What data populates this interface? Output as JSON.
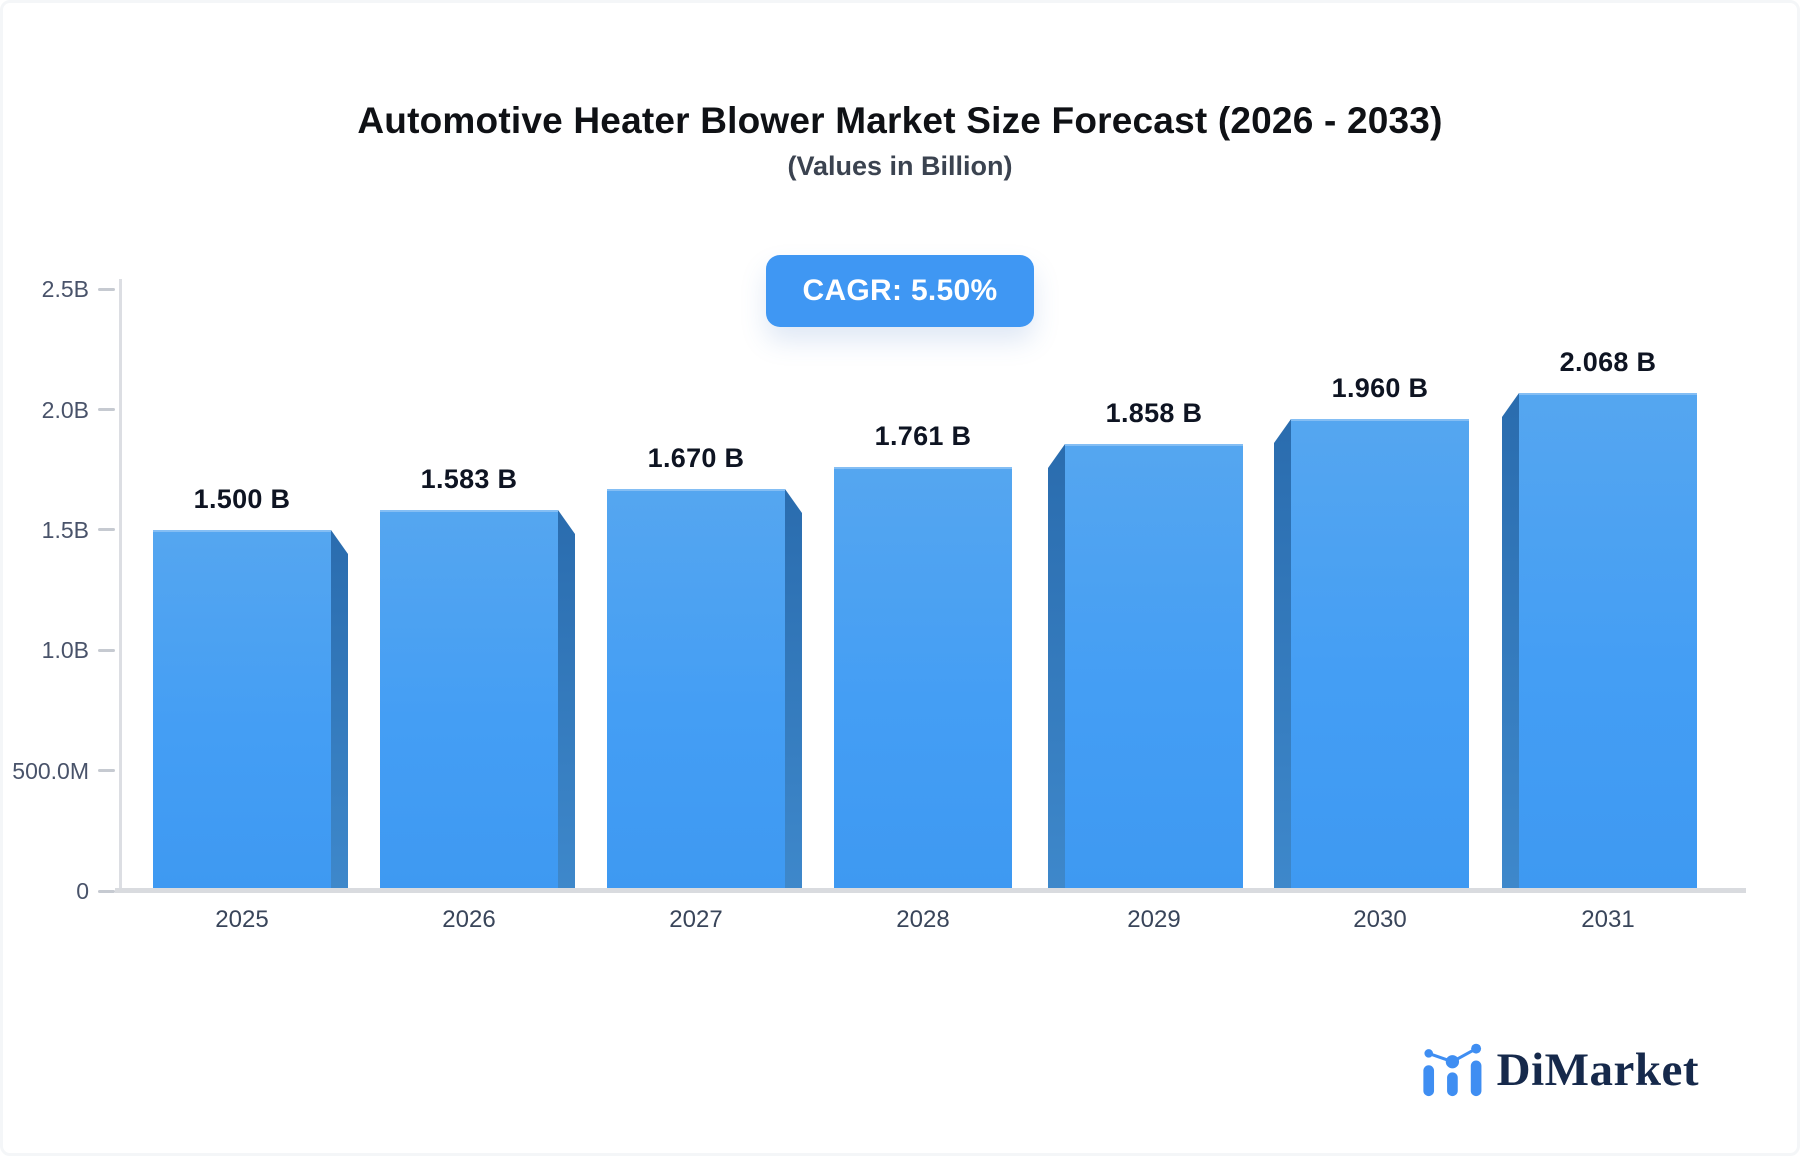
{
  "chart_data": {
    "type": "bar",
    "title": "Automotive Heater Blower Market Size Forecast (2026 - 2033)",
    "subtitle": "(Values in Billion)",
    "cagr_label": "CAGR: 5.50%",
    "categories": [
      "2025",
      "2026",
      "2027",
      "2028",
      "2029",
      "2030",
      "2031"
    ],
    "values": [
      1.5,
      1.583,
      1.67,
      1.761,
      1.858,
      1.96,
      2.068
    ],
    "value_labels": [
      "1.500 B",
      "1.583 B",
      "1.670 B",
      "1.761 B",
      "1.858 B",
      "1.960 B",
      "2.068 B"
    ],
    "unit": "Billion",
    "xlabel": "",
    "ylabel": "",
    "ylim": [
      0,
      2.5
    ],
    "y_ticks": [
      {
        "value": 0,
        "label": "0"
      },
      {
        "value": 0.5,
        "label": "500.0M"
      },
      {
        "value": 1.0,
        "label": "1.0B"
      },
      {
        "value": 1.5,
        "label": "1.5B"
      },
      {
        "value": 2.0,
        "label": "2.0B"
      },
      {
        "value": 2.5,
        "label": "2.5B"
      }
    ],
    "grid": false,
    "legend_position": "none",
    "colors": {
      "bar_face_top": "#55a6f0",
      "bar_face_bottom": "#3e99f2",
      "bar_side": "#2e74b6",
      "axis": "#d9dbdf",
      "tick_text": "#49536a",
      "category_text": "#39455a",
      "value_text": "#0e1422",
      "badge_bg": "#3f97f3",
      "badge_text": "#ffffff"
    }
  },
  "logo": {
    "brand": "DiMarket",
    "icon": "bar-chart-trendline-icon",
    "brand_color": "#16294b",
    "icon_color": "#3f8ef2"
  }
}
